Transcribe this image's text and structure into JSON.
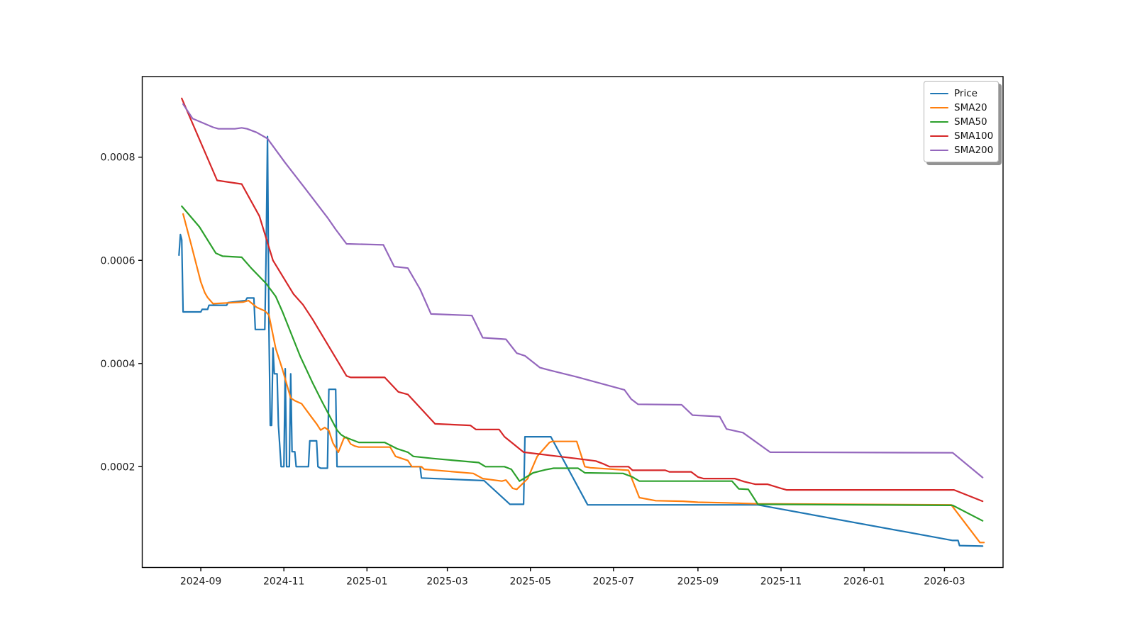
{
  "chart_data": {
    "type": "line",
    "title": "",
    "xlabel": "",
    "ylabel": "",
    "grid": false,
    "legend": {
      "position": "upper right",
      "entries": [
        "Price",
        "SMA20",
        "SMA50",
        "SMA100",
        "SMA200"
      ]
    },
    "axis_color": "#000000",
    "tick_label_color": "#1a1a1a",
    "x_domain": [
      "2024-07-20",
      "2026-04-13"
    ],
    "y_domain": [
      4.6e-06,
      0.0009563
    ],
    "x_ticks": [
      {
        "date": "2024-09-01",
        "label": "2024-09"
      },
      {
        "date": "2024-11-01",
        "label": "2024-11"
      },
      {
        "date": "2025-01-01",
        "label": "2025-01"
      },
      {
        "date": "2025-03-01",
        "label": "2025-03"
      },
      {
        "date": "2025-05-01",
        "label": "2025-05"
      },
      {
        "date": "2025-07-01",
        "label": "2025-07"
      },
      {
        "date": "2025-09-01",
        "label": "2025-09"
      },
      {
        "date": "2025-11-01",
        "label": "2025-11"
      },
      {
        "date": "2026-01-01",
        "label": "2026-01"
      },
      {
        "date": "2026-03-01",
        "label": "2026-03"
      }
    ],
    "y_ticks": [
      {
        "value": 0.0002,
        "label": "0.0002"
      },
      {
        "value": 0.0004,
        "label": "0.0004"
      },
      {
        "value": 0.0006,
        "label": "0.0006"
      },
      {
        "value": 0.0008,
        "label": "0.0008"
      }
    ],
    "series": [
      {
        "name": "Price",
        "color": "#1f77b4",
        "points": [
          [
            "2024-08-16",
            0.00061
          ],
          [
            "2024-08-17",
            0.00065
          ],
          [
            "2024-08-18",
            0.00064
          ],
          [
            "2024-08-19",
            0.0005
          ],
          [
            "2024-09-01",
            0.0005
          ],
          [
            "2024-09-02",
            0.000505
          ],
          [
            "2024-09-06",
            0.000505
          ],
          [
            "2024-09-07",
            0.000513
          ],
          [
            "2024-09-20",
            0.000513
          ],
          [
            "2024-09-21",
            0.000518
          ],
          [
            "2024-10-04",
            0.000522
          ],
          [
            "2024-10-05",
            0.000527
          ],
          [
            "2024-10-10",
            0.000527
          ],
          [
            "2024-10-11",
            0.000466
          ],
          [
            "2024-10-18",
            0.000466
          ],
          [
            "2024-10-19",
            0.00062
          ],
          [
            "2024-10-20",
            0.00084
          ],
          [
            "2024-10-21",
            0.00047
          ],
          [
            "2024-10-22",
            0.00028
          ],
          [
            "2024-10-23",
            0.00028
          ],
          [
            "2024-10-24",
            0.00043
          ],
          [
            "2024-10-25",
            0.00038
          ],
          [
            "2024-10-27",
            0.00038
          ],
          [
            "2024-10-28",
            0.00028
          ],
          [
            "2024-10-30",
            0.0002
          ],
          [
            "2024-11-01",
            0.0002
          ],
          [
            "2024-11-02",
            0.00039
          ],
          [
            "2024-11-03",
            0.0002
          ],
          [
            "2024-11-05",
            0.0002
          ],
          [
            "2024-11-06",
            0.00038
          ],
          [
            "2024-11-07",
            0.000229
          ],
          [
            "2024-11-09",
            0.000229
          ],
          [
            "2024-11-10",
            0.0002
          ],
          [
            "2024-11-19",
            0.0002
          ],
          [
            "2024-11-20",
            0.00025
          ],
          [
            "2024-11-25",
            0.00025
          ],
          [
            "2024-11-26",
            0.0002
          ],
          [
            "2024-11-28",
            0.000197
          ],
          [
            "2024-12-03",
            0.000197
          ],
          [
            "2024-12-04",
            0.00035
          ],
          [
            "2024-12-09",
            0.00035
          ],
          [
            "2024-12-10",
            0.0002
          ],
          [
            "2025-02-09",
            0.0002
          ],
          [
            "2025-02-10",
            0.000178
          ],
          [
            "2025-03-28",
            0.000173
          ],
          [
            "2025-04-16",
            0.000127
          ],
          [
            "2025-04-26",
            0.000127
          ],
          [
            "2025-04-27",
            0.000258
          ],
          [
            "2025-05-16",
            0.000258
          ],
          [
            "2025-06-12",
            0.000126
          ],
          [
            "2025-10-15",
            0.000126
          ],
          [
            "2026-03-07",
            5.7e-05
          ],
          [
            "2026-03-11",
            5.7e-05
          ],
          [
            "2026-03-12",
            4.7e-05
          ],
          [
            "2026-03-29",
            4.6e-05
          ]
        ]
      },
      {
        "name": "SMA20",
        "color": "#ff7f0e",
        "points": [
          [
            "2024-08-19",
            0.00069
          ],
          [
            "2024-08-25",
            0.00063
          ],
          [
            "2024-09-01",
            0.000558
          ],
          [
            "2024-09-04",
            0.000537
          ],
          [
            "2024-09-06",
            0.000528
          ],
          [
            "2024-09-10",
            0.000516
          ],
          [
            "2024-10-02",
            0.000519
          ],
          [
            "2024-10-06",
            0.000522
          ],
          [
            "2024-10-12",
            0.000509
          ],
          [
            "2024-10-18",
            0.000502
          ],
          [
            "2024-10-21",
            0.000494
          ],
          [
            "2024-10-26",
            0.000429
          ],
          [
            "2024-10-31",
            0.000388
          ],
          [
            "2024-11-06",
            0.000333
          ],
          [
            "2024-11-09",
            0.000328
          ],
          [
            "2024-11-14",
            0.000322
          ],
          [
            "2024-11-21",
            0.000297
          ],
          [
            "2024-11-25",
            0.000283
          ],
          [
            "2024-11-28",
            0.000271
          ],
          [
            "2024-12-01",
            0.000276
          ],
          [
            "2024-12-04",
            0.00027
          ],
          [
            "2024-12-07",
            0.000246
          ],
          [
            "2024-12-11",
            0.000228
          ],
          [
            "2024-12-15",
            0.000255
          ],
          [
            "2024-12-17",
            0.000257
          ],
          [
            "2024-12-20",
            0.000244
          ],
          [
            "2024-12-23",
            0.00024
          ],
          [
            "2024-12-26",
            0.000238
          ],
          [
            "2025-01-18",
            0.000238
          ],
          [
            "2025-01-22",
            0.00022
          ],
          [
            "2025-01-31",
            0.000212
          ],
          [
            "2025-02-03",
            0.0002
          ],
          [
            "2025-02-10",
            0.0002
          ],
          [
            "2025-02-12",
            0.000195
          ],
          [
            "2025-03-20",
            0.000187
          ],
          [
            "2025-03-27",
            0.000177
          ],
          [
            "2025-04-10",
            0.000172
          ],
          [
            "2025-04-13",
            0.000174
          ],
          [
            "2025-04-18",
            0.000158
          ],
          [
            "2025-04-21",
            0.000156
          ],
          [
            "2025-04-29",
            0.000177
          ],
          [
            "2025-05-06",
            0.00022
          ],
          [
            "2025-05-15",
            0.000247
          ],
          [
            "2025-05-17",
            0.000249
          ],
          [
            "2025-06-04",
            0.000249
          ],
          [
            "2025-06-10",
            0.0002
          ],
          [
            "2025-06-14",
            0.000198
          ],
          [
            "2025-07-12",
            0.000193
          ],
          [
            "2025-07-20",
            0.00014
          ],
          [
            "2025-08-01",
            0.000134
          ],
          [
            "2025-08-21",
            0.000133
          ],
          [
            "2025-09-01",
            0.000131
          ],
          [
            "2025-09-21",
            0.00013
          ],
          [
            "2025-10-15",
            0.000128
          ],
          [
            "2026-03-06",
            0.000126
          ],
          [
            "2026-03-27",
            5.3e-05
          ],
          [
            "2026-03-30",
            5.3e-05
          ]
        ]
      },
      {
        "name": "SMA50",
        "color": "#2ca02c",
        "points": [
          [
            "2024-08-18",
            0.000705
          ],
          [
            "2024-08-31",
            0.000665
          ],
          [
            "2024-09-12",
            0.000614
          ],
          [
            "2024-09-17",
            0.000608
          ],
          [
            "2024-10-01",
            0.000606
          ],
          [
            "2024-10-08",
            0.000585
          ],
          [
            "2024-10-19",
            0.000555
          ],
          [
            "2024-10-26",
            0.00053
          ],
          [
            "2024-10-31",
            0.0005
          ],
          [
            "2024-11-13",
            0.000414
          ],
          [
            "2024-11-22",
            0.000363
          ],
          [
            "2024-11-29",
            0.000326
          ],
          [
            "2024-12-06",
            0.000291
          ],
          [
            "2024-12-10",
            0.000271
          ],
          [
            "2024-12-13",
            0.000262
          ],
          [
            "2024-12-16",
            0.000257
          ],
          [
            "2024-12-23",
            0.00025
          ],
          [
            "2024-12-26",
            0.000247
          ],
          [
            "2025-01-14",
            0.000247
          ],
          [
            "2025-01-23",
            0.000235
          ],
          [
            "2025-01-31",
            0.000228
          ],
          [
            "2025-02-04",
            0.00022
          ],
          [
            "2025-02-18",
            0.000216
          ],
          [
            "2025-03-24",
            0.000208
          ],
          [
            "2025-03-29",
            0.0002
          ],
          [
            "2025-04-12",
            0.0002
          ],
          [
            "2025-04-17",
            0.000195
          ],
          [
            "2025-04-23",
            0.000172
          ],
          [
            "2025-05-03",
            0.000188
          ],
          [
            "2025-05-12",
            0.000194
          ],
          [
            "2025-05-18",
            0.000197
          ],
          [
            "2025-06-05",
            0.000197
          ],
          [
            "2025-06-10",
            0.000188
          ],
          [
            "2025-07-08",
            0.000187
          ],
          [
            "2025-07-15",
            0.00018
          ],
          [
            "2025-07-20",
            0.000172
          ],
          [
            "2025-09-26",
            0.000172
          ],
          [
            "2025-10-01",
            0.000157
          ],
          [
            "2025-10-08",
            0.000156
          ],
          [
            "2025-10-15",
            0.000127
          ],
          [
            "2026-03-07",
            0.000125
          ],
          [
            "2026-03-29",
            9.5e-05
          ]
        ]
      },
      {
        "name": "SMA100",
        "color": "#d62728",
        "points": [
          [
            "2024-08-18",
            0.000914
          ],
          [
            "2024-09-13",
            0.000755
          ],
          [
            "2024-10-01",
            0.000748
          ],
          [
            "2024-10-14",
            0.000686
          ],
          [
            "2024-10-24",
            0.0006
          ],
          [
            "2024-11-08",
            0.000535
          ],
          [
            "2024-11-15",
            0.000514
          ],
          [
            "2024-11-22",
            0.000486
          ],
          [
            "2024-12-17",
            0.000376
          ],
          [
            "2024-12-20",
            0.000373
          ],
          [
            "2025-01-14",
            0.000373
          ],
          [
            "2025-01-24",
            0.000345
          ],
          [
            "2025-01-31",
            0.00034
          ],
          [
            "2025-02-20",
            0.000283
          ],
          [
            "2025-03-18",
            0.00028
          ],
          [
            "2025-03-22",
            0.000272
          ],
          [
            "2025-04-08",
            0.000272
          ],
          [
            "2025-04-12",
            0.000258
          ],
          [
            "2025-04-19",
            0.000243
          ],
          [
            "2025-04-26",
            0.000228
          ],
          [
            "2025-05-15",
            0.000222
          ],
          [
            "2025-06-03",
            0.000216
          ],
          [
            "2025-06-18",
            0.000211
          ],
          [
            "2025-06-24",
            0.000205
          ],
          [
            "2025-06-28",
            0.0002
          ],
          [
            "2025-07-12",
            0.0002
          ],
          [
            "2025-07-15",
            0.000193
          ],
          [
            "2025-08-08",
            0.000193
          ],
          [
            "2025-08-11",
            0.00019
          ],
          [
            "2025-08-27",
            0.00019
          ],
          [
            "2025-09-01",
            0.00018
          ],
          [
            "2025-09-05",
            0.000177
          ],
          [
            "2025-09-28",
            0.000177
          ],
          [
            "2025-10-05",
            0.000171
          ],
          [
            "2025-10-13",
            0.000166
          ],
          [
            "2025-10-22",
            0.000166
          ],
          [
            "2025-11-01",
            0.000158
          ],
          [
            "2025-11-05",
            0.000155
          ],
          [
            "2026-03-08",
            0.000155
          ],
          [
            "2026-03-29",
            0.000133
          ]
        ]
      },
      {
        "name": "SMA200",
        "color": "#9467bd",
        "points": [
          [
            "2024-08-19",
            0.000903
          ],
          [
            "2024-08-26",
            0.000875
          ],
          [
            "2024-09-10",
            0.000858
          ],
          [
            "2024-09-14",
            0.000855
          ],
          [
            "2024-09-26",
            0.000855
          ],
          [
            "2024-10-01",
            0.000857
          ],
          [
            "2024-10-05",
            0.000855
          ],
          [
            "2024-10-12",
            0.000848
          ],
          [
            "2024-10-20",
            0.000836
          ],
          [
            "2024-11-02",
            0.000789
          ],
          [
            "2024-11-17",
            0.000738
          ],
          [
            "2024-12-03",
            0.000683
          ],
          [
            "2024-12-09",
            0.00066
          ],
          [
            "2024-12-17",
            0.000632
          ],
          [
            "2025-01-13",
            0.00063
          ],
          [
            "2025-01-21",
            0.000588
          ],
          [
            "2025-01-31",
            0.000585
          ],
          [
            "2025-02-09",
            0.000544
          ],
          [
            "2025-02-17",
            0.000496
          ],
          [
            "2025-03-19",
            0.000493
          ],
          [
            "2025-03-27",
            0.00045
          ],
          [
            "2025-04-13",
            0.000447
          ],
          [
            "2025-04-21",
            0.00042
          ],
          [
            "2025-04-27",
            0.000415
          ],
          [
            "2025-05-08",
            0.000392
          ],
          [
            "2025-05-15",
            0.000387
          ],
          [
            "2025-06-04",
            0.000374
          ],
          [
            "2025-07-09",
            0.000349
          ],
          [
            "2025-07-14",
            0.000331
          ],
          [
            "2025-07-19",
            0.000321
          ],
          [
            "2025-08-20",
            0.00032
          ],
          [
            "2025-08-28",
            0.0003
          ],
          [
            "2025-09-17",
            0.000297
          ],
          [
            "2025-09-22",
            0.000273
          ],
          [
            "2025-10-04",
            0.000266
          ],
          [
            "2025-10-24",
            0.000228
          ],
          [
            "2026-03-07",
            0.000227
          ],
          [
            "2026-03-29",
            0.000179
          ]
        ]
      }
    ]
  }
}
